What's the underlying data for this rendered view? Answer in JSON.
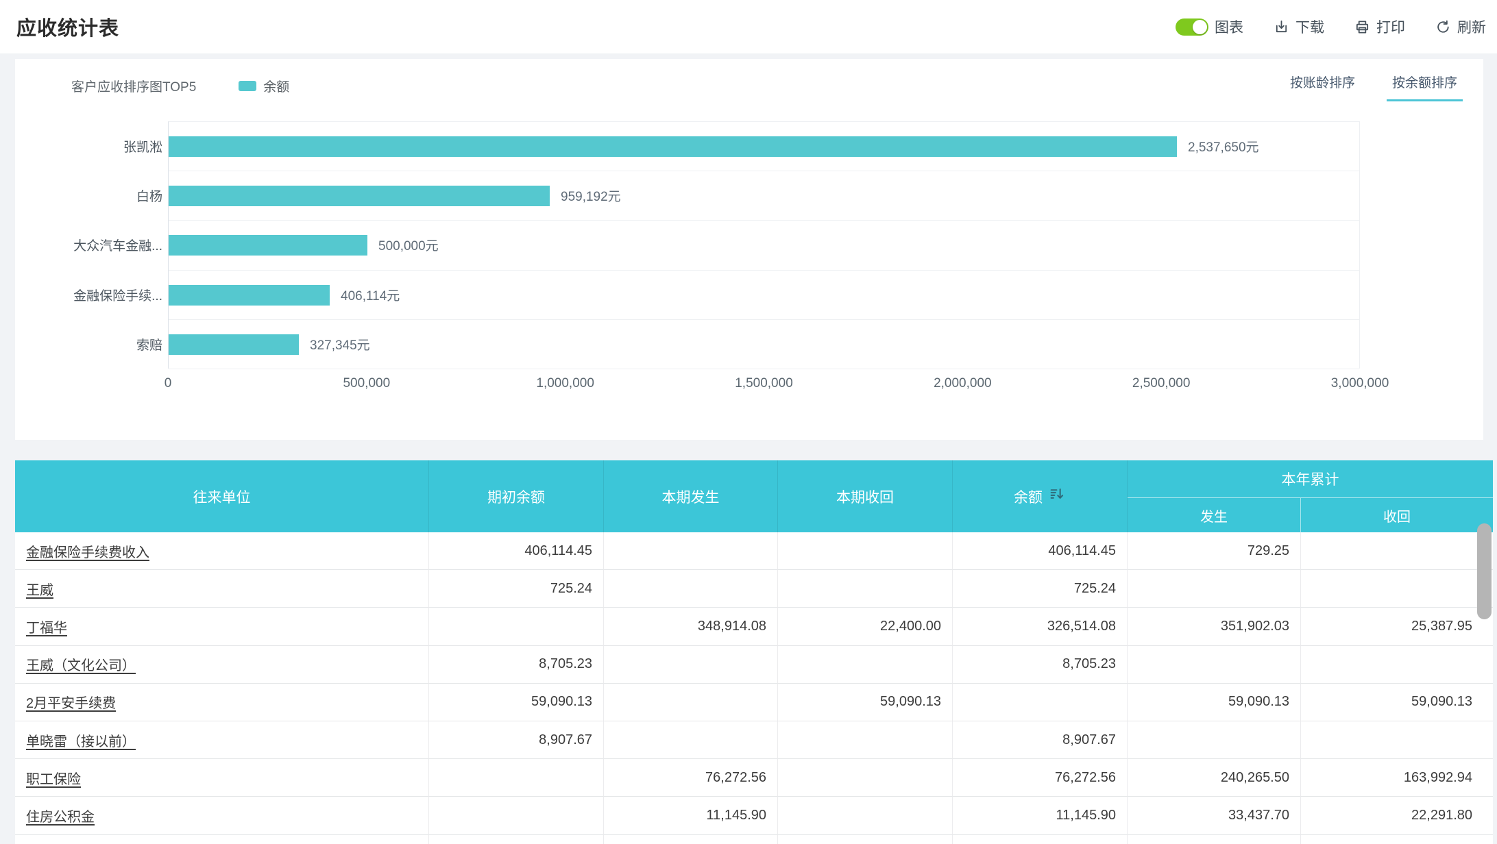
{
  "page": {
    "title": "应收统计表"
  },
  "toolbar": {
    "chart_toggle_label": "图表",
    "chart_toggle_on": true,
    "toggle_color": "#7fc91e",
    "download_label": "下载",
    "print_label": "打印",
    "refresh_label": "刷新"
  },
  "chart": {
    "title": "客户应收排序图TOP5",
    "legend_label": "余额",
    "bar_color": "#55c8cf",
    "tabs": [
      {
        "label": "按账龄排序",
        "active": false
      },
      {
        "label": "按余额排序",
        "active": true
      }
    ]
  },
  "chart_data": {
    "type": "bar",
    "orientation": "horizontal",
    "title": "客户应收排序图TOP5",
    "series_name": "余额",
    "categories": [
      "张凯淞",
      "白杨",
      "大众汽车金融...",
      "金融保险手续...",
      "索赔"
    ],
    "values": [
      2537650,
      959192,
      500000,
      406114,
      327345
    ],
    "value_labels": [
      "2,537,650元",
      "959,192元",
      "500,000元",
      "406,114元",
      "327,345元"
    ],
    "xlim": [
      0,
      3000000
    ],
    "x_ticks": [
      "0",
      "500,000",
      "1,000,000",
      "1,500,000",
      "2,000,000",
      "2,500,000",
      "3,000,000"
    ],
    "grid": "category-band-separators",
    "legend_position": "top-left"
  },
  "table": {
    "header_color": "#3cc6d8",
    "columns": [
      "往来单位",
      "期初余额",
      "本期发生",
      "本期收回",
      "余额",
      "发生",
      "收回"
    ],
    "group_header": "本年累计",
    "sorted_column": "余额",
    "rows": [
      {
        "name": "金融保险手续费收入",
        "cells": [
          "406,114.45",
          "",
          "",
          "406,114.45",
          "729.25",
          ""
        ]
      },
      {
        "name": "王威",
        "cells": [
          "725.24",
          "",
          "",
          "725.24",
          "",
          ""
        ]
      },
      {
        "name": "丁福华",
        "cells": [
          "",
          "348,914.08",
          "22,400.00",
          "326,514.08",
          "351,902.03",
          "25,387.95"
        ]
      },
      {
        "name": "王威（文化公司）",
        "cells": [
          "8,705.23",
          "",
          "",
          "8,705.23",
          "",
          ""
        ]
      },
      {
        "name": "2月平安手续费",
        "cells": [
          "59,090.13",
          "",
          "59,090.13",
          "",
          "59,090.13",
          "59,090.13"
        ]
      },
      {
        "name": "单晓雷（接以前）",
        "cells": [
          "8,907.67",
          "",
          "",
          "8,907.67",
          "",
          ""
        ]
      },
      {
        "name": "职工保险",
        "cells": [
          "",
          "76,272.56",
          "",
          "76,272.56",
          "240,265.50",
          "163,992.94"
        ]
      },
      {
        "name": "住房公积金",
        "cells": [
          "",
          "11,145.90",
          "",
          "11,145.90",
          "33,437.70",
          "22,291.80"
        ]
      }
    ]
  }
}
